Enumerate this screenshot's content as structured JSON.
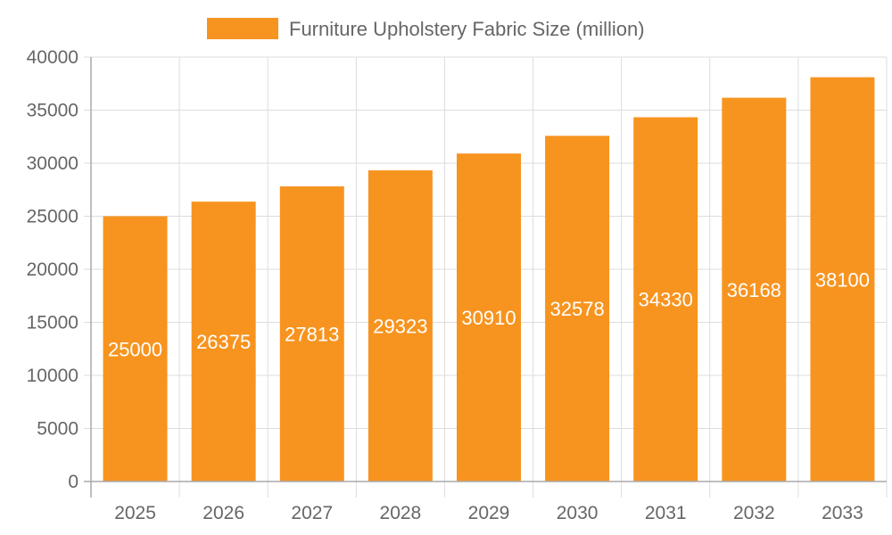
{
  "chart_data": {
    "type": "bar",
    "title": "",
    "xlabel": "",
    "ylabel": "",
    "categories": [
      "2025",
      "2026",
      "2027",
      "2028",
      "2029",
      "2030",
      "2031",
      "2032",
      "2033"
    ],
    "series": [
      {
        "name": "Furniture Upholstery Fabric Size (million)",
        "values": [
          25000,
          26375,
          27813,
          29323,
          30910,
          32578,
          34330,
          36168,
          38100
        ],
        "color": "#F7941F"
      }
    ],
    "ylim": [
      0,
      40000
    ],
    "yticks": [
      0,
      5000,
      10000,
      15000,
      20000,
      25000,
      30000,
      35000,
      40000
    ],
    "grid": true,
    "legend": "top-center",
    "data_labels": true
  }
}
